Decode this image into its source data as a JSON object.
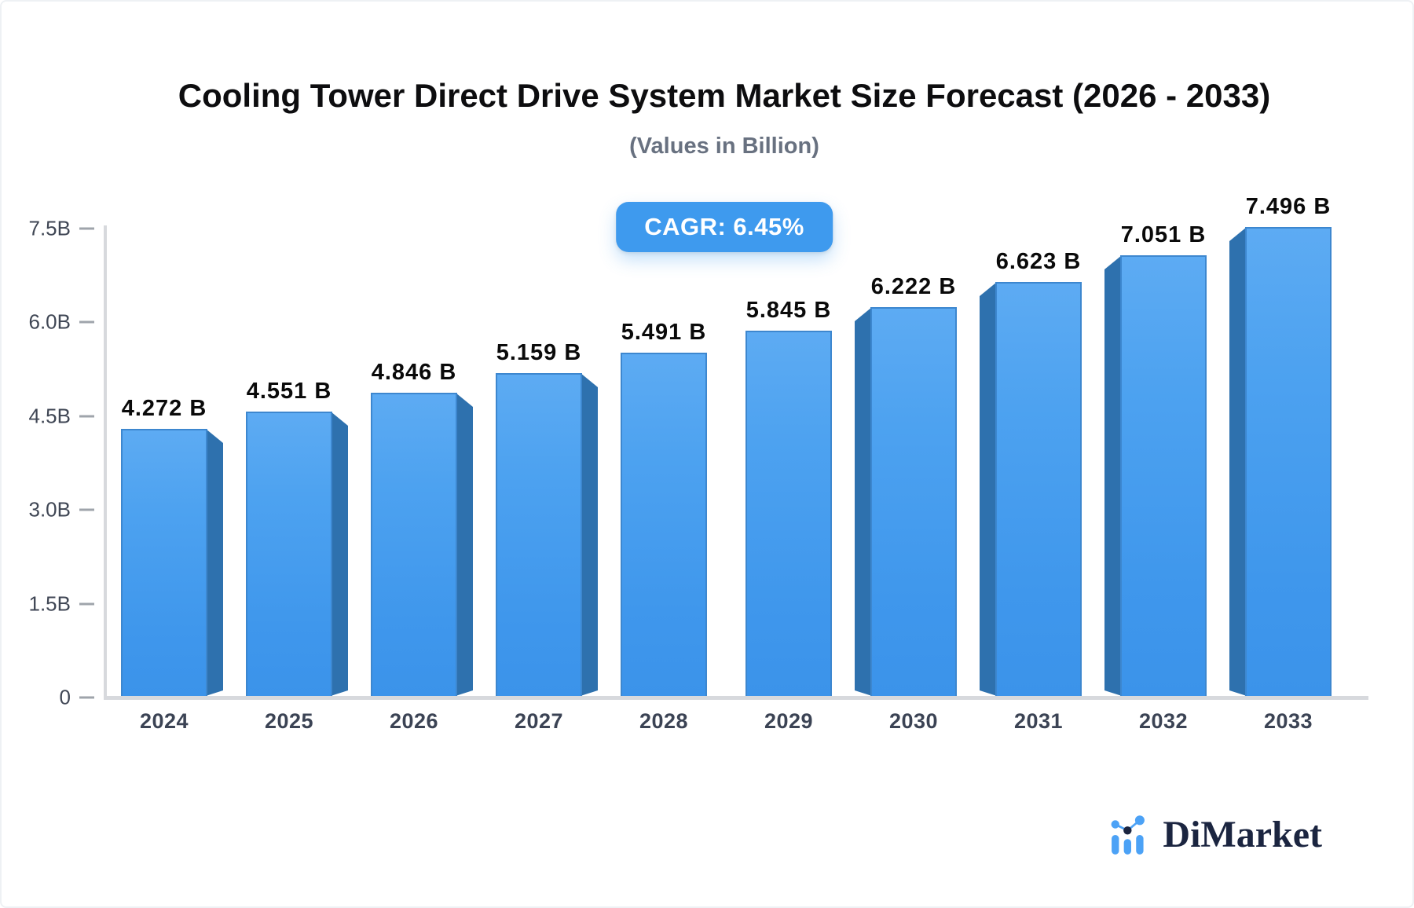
{
  "header": {
    "title": "Cooling Tower Direct Drive System Market Size Forecast (2026 - 2033)",
    "subtitle": "(Values in Billion)",
    "cagr_label": "CAGR: 6.45%"
  },
  "branding": {
    "name": "DiMarket"
  },
  "colors": {
    "bar_front_top": "#5dabf3",
    "bar_front_bottom": "#3b93ea",
    "bar_border": "#3d87cf",
    "bar_side_face": "#2e71ae",
    "badge_bg": "#3e9aee",
    "axis_line": "#d7d9dd",
    "tick_dash": "#9fa4ab",
    "logo_blue": "#4ca2f6",
    "logo_navy": "#1b2540"
  },
  "chart_data": {
    "type": "bar",
    "style": "3d-bars",
    "title": "Cooling Tower Direct Drive System Market Size Forecast (2026 - 2033)",
    "subtitle": "(Values in Billion)",
    "annotation": "CAGR: 6.45%",
    "unit": "Billion",
    "categories": [
      "2024",
      "2025",
      "2026",
      "2027",
      "2028",
      "2029",
      "2030",
      "2031",
      "2032",
      "2033"
    ],
    "values": [
      4.272,
      4.551,
      4.846,
      5.159,
      5.491,
      5.845,
      6.222,
      6.623,
      7.051,
      7.496
    ],
    "value_labels": [
      "4.272 B",
      "4.551 B",
      "4.846 B",
      "5.159 B",
      "5.491 B",
      "5.845 B",
      "6.222 B",
      "6.623 B",
      "7.051 B",
      "7.496 B"
    ],
    "y_axis": {
      "tick_labels": [
        "0",
        "1.5B",
        "3.0B",
        "4.5B",
        "6.0B",
        "7.5B"
      ],
      "tick_values": [
        0,
        1.5,
        3.0,
        4.5,
        6.0,
        7.5
      ],
      "min": 0,
      "max": 7.5
    },
    "grid": false,
    "legend": false
  }
}
